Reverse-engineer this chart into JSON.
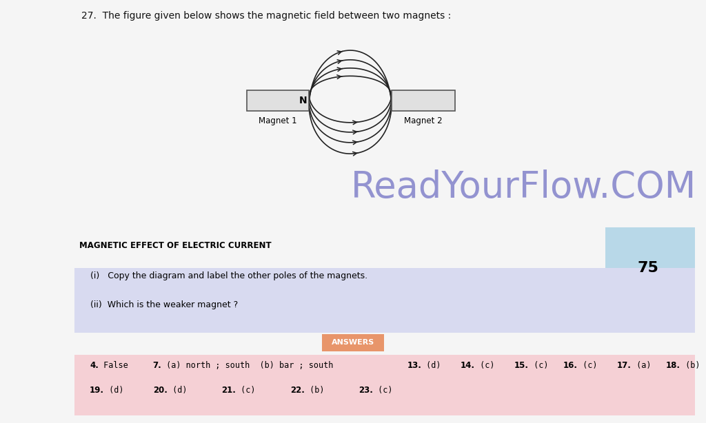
{
  "top_bg_color": "#cfd0e0",
  "bottom_bg_color": "#f5f5f5",
  "question_text": "27.  The figure given below shows the magnetic field between two magnets :",
  "question_fontsize": 10,
  "magnet1_label": "Magnet 1",
  "magnet2_label": "Magnet 2",
  "N_label": "N",
  "section_title": "MAGNETIC EFFECT OF ELECTRIC CURRENT",
  "section_title_fontsize": 8.5,
  "page_number": "75",
  "page_number_fontsize": 16,
  "page_number_bg": "#b8d8e8",
  "questions_bg": "#d8daf0",
  "question_i_text": "    (i)   Copy the diagram and label the other poles of the magnets.",
  "question_ii_text": "    (ii)  Which is the weaker magnet ?",
  "answers_label": "ANSWERS",
  "answers_bg": "#e8956a",
  "answers_text1_bold": [
    "4.",
    "7.",
    "13.",
    "14.",
    "15.",
    "16.",
    "17.",
    "18."
  ],
  "answers_text1": "4. False     7. (a) north ; south  (b) bar ; south               13. (d)    14. (c)    15. (c)   16. (c)    17. (a)   18. (b)",
  "answers_text2_bold": [
    "19.",
    "20.",
    "21.",
    "22.",
    "23."
  ],
  "answers_text2": "19. (d)      20. (d)       21. (c)       22. (b)       23. (c)",
  "answers_row_bg": "#f5d0d5",
  "watermark_text": "ReadYourFlow.COM",
  "watermark_color": "#8888cc",
  "watermark_fontsize": 38,
  "field_line_color": "#222222",
  "magnet_fill": "#e0e0e0",
  "magnet_stroke": "#555555",
  "black_bar_color": "#1a1a1a",
  "divider_thickness": 0.022
}
